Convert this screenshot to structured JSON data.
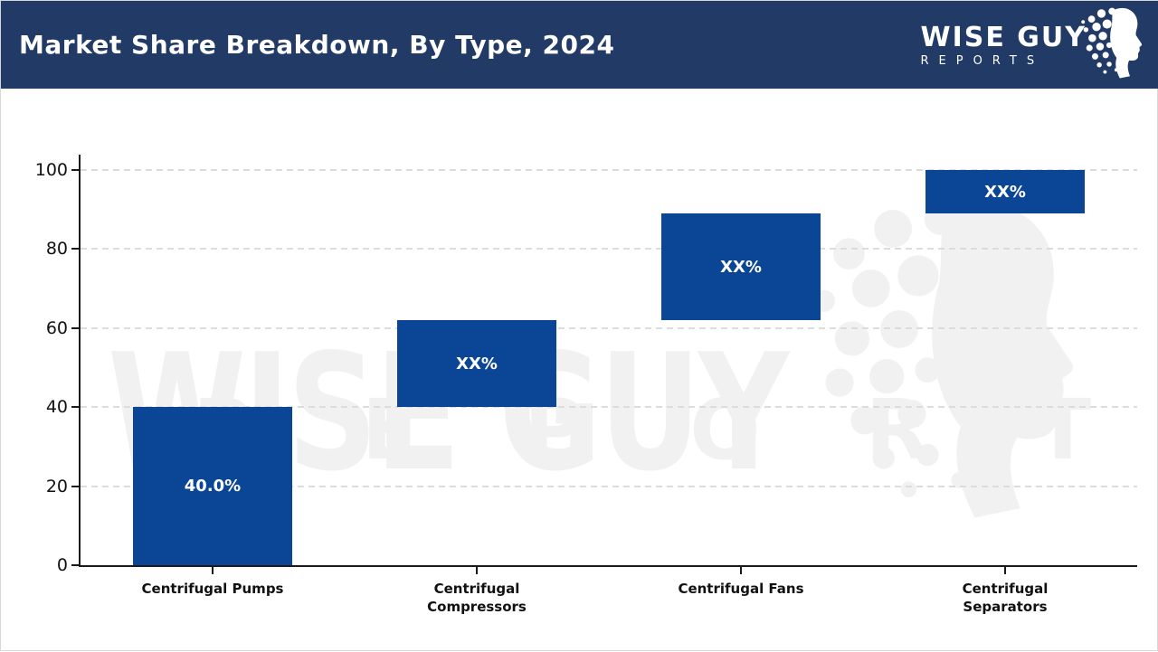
{
  "header": {
    "title": "Market Share Breakdown, By Type, 2024",
    "logo": {
      "line1": "WISE GUY",
      "line2": "REPORTS"
    }
  },
  "watermark": {
    "line1": "WISE GUY",
    "line2": "R E P O R T S"
  },
  "chart_data": {
    "type": "bar",
    "subtype": "waterfall",
    "title": "Market Share Breakdown, By Type, 2024",
    "categories": [
      "Centrifugal Pumps",
      "Centrifugal Compressors",
      "Centrifugal Fans",
      "Centrifugal Separators"
    ],
    "series": [
      {
        "name": "Market Share",
        "segments": [
          {
            "category": "Centrifugal Pumps",
            "start": 0,
            "end": 40,
            "label": "40.0%"
          },
          {
            "category": "Centrifugal Compressors",
            "start": 40,
            "end": 62,
            "label": "XX%"
          },
          {
            "category": "Centrifugal Fans",
            "start": 62,
            "end": 89,
            "label": "XX%"
          },
          {
            "category": "Centrifugal Separators",
            "start": 89,
            "end": 100,
            "label": "XX%"
          }
        ]
      }
    ],
    "y_ticks": [
      0,
      20,
      40,
      60,
      80,
      100
    ],
    "ylim": [
      0,
      104
    ],
    "xlabel": "",
    "ylabel": "",
    "grid": "horizontal-dashed",
    "legend": "none",
    "colors": {
      "bar": "#0b4596",
      "bar_label": "#ffffff",
      "axis": "#1a1a1a",
      "grid": "#dcdcdc",
      "tick_label": "#111111",
      "header_bg": "#213a66",
      "header_text": "#ffffff",
      "watermark": "#f1f1f1",
      "page_border": "#d8d8d8"
    }
  }
}
